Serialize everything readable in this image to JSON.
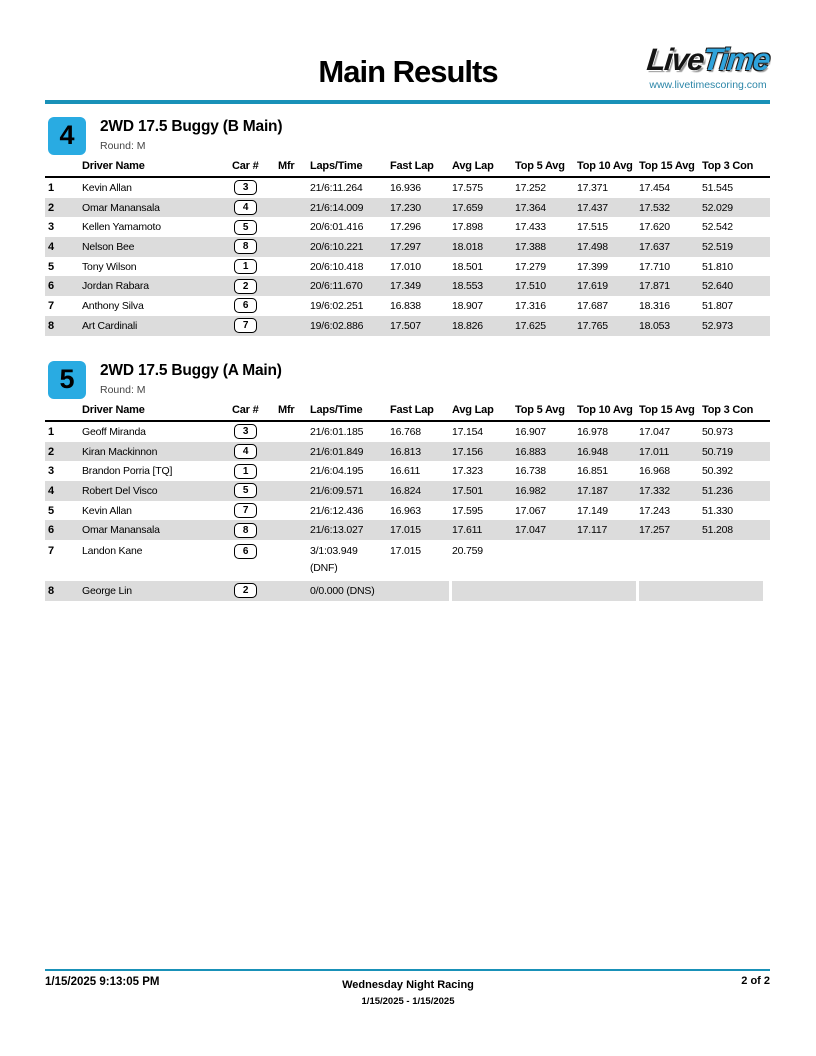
{
  "header": {
    "title": "Main Results",
    "logo_live": "Live",
    "logo_time": "Time",
    "logo_url": "www.livetimescoring.com"
  },
  "columns": [
    "",
    "Driver Name",
    "Car #",
    "Mfr",
    "Laps/Time",
    "Fast Lap",
    "Avg Lap",
    "Top 5 Avg",
    "Top 10 Avg",
    "Top 15 Avg",
    "Top 3 Con"
  ],
  "sections": [
    {
      "number": "4",
      "title": "2WD 17.5 Buggy (B Main)",
      "round": "Round: M",
      "rows": [
        {
          "pos": "1",
          "driver": "Kevin Allan",
          "car": "3",
          "mfr": "",
          "laps": "21/6:11.264",
          "fast": "16.936",
          "avg": "17.575",
          "top5": "17.252",
          "top10": "17.371",
          "top15": "17.454",
          "top3": "51.545"
        },
        {
          "pos": "2",
          "driver": "Omar Manansala",
          "car": "4",
          "mfr": "",
          "laps": "21/6:14.009",
          "fast": "17.230",
          "avg": "17.659",
          "top5": "17.364",
          "top10": "17.437",
          "top15": "17.532",
          "top3": "52.029"
        },
        {
          "pos": "3",
          "driver": "Kellen Yamamoto",
          "car": "5",
          "mfr": "",
          "laps": "20/6:01.416",
          "fast": "17.296",
          "avg": "17.898",
          "top5": "17.433",
          "top10": "17.515",
          "top15": "17.620",
          "top3": "52.542"
        },
        {
          "pos": "4",
          "driver": "Nelson Bee",
          "car": "8",
          "mfr": "",
          "laps": "20/6:10.221",
          "fast": "17.297",
          "avg": "18.018",
          "top5": "17.388",
          "top10": "17.498",
          "top15": "17.637",
          "top3": "52.519"
        },
        {
          "pos": "5",
          "driver": "Tony Wilson",
          "car": "1",
          "mfr": "",
          "laps": "20/6:10.418",
          "fast": "17.010",
          "avg": "18.501",
          "top5": "17.279",
          "top10": "17.399",
          "top15": "17.710",
          "top3": "51.810"
        },
        {
          "pos": "6",
          "driver": "Jordan Rabara",
          "car": "2",
          "mfr": "",
          "laps": "20/6:11.670",
          "fast": "17.349",
          "avg": "18.553",
          "top5": "17.510",
          "top10": "17.619",
          "top15": "17.871",
          "top3": "52.640"
        },
        {
          "pos": "7",
          "driver": "Anthony Silva",
          "car": "6",
          "mfr": "",
          "laps": "19/6:02.251",
          "fast": "16.838",
          "avg": "18.907",
          "top5": "17.316",
          "top10": "17.687",
          "top15": "18.316",
          "top3": "51.807"
        },
        {
          "pos": "8",
          "driver": "Art Cardinali",
          "car": "7",
          "mfr": "",
          "laps": "19/6:02.886",
          "fast": "17.507",
          "avg": "18.826",
          "top5": "17.625",
          "top10": "17.765",
          "top15": "18.053",
          "top3": "52.973"
        }
      ]
    },
    {
      "number": "5",
      "title": "2WD 17.5 Buggy (A Main)",
      "round": "Round: M",
      "rows": [
        {
          "pos": "1",
          "driver": "Geoff Miranda",
          "car": "3",
          "mfr": "",
          "laps": "21/6:01.185",
          "fast": "16.768",
          "avg": "17.154",
          "top5": "16.907",
          "top10": "16.978",
          "top15": "17.047",
          "top3": "50.973"
        },
        {
          "pos": "2",
          "driver": "Kiran Mackinnon",
          "car": "4",
          "mfr": "",
          "laps": "21/6:01.849",
          "fast": "16.813",
          "avg": "17.156",
          "top5": "16.883",
          "top10": "16.948",
          "top15": "17.011",
          "top3": "50.719"
        },
        {
          "pos": "3",
          "driver": "Brandon Porria [TQ]",
          "car": "1",
          "mfr": "",
          "laps": "21/6:04.195",
          "fast": "16.611",
          "avg": "17.323",
          "top5": "16.738",
          "top10": "16.851",
          "top15": "16.968",
          "top3": "50.392"
        },
        {
          "pos": "4",
          "driver": "Robert Del Visco",
          "car": "5",
          "mfr": "",
          "laps": "21/6:09.571",
          "fast": "16.824",
          "avg": "17.501",
          "top5": "16.982",
          "top10": "17.187",
          "top15": "17.332",
          "top3": "51.236"
        },
        {
          "pos": "5",
          "driver": "Kevin Allan",
          "car": "7",
          "mfr": "",
          "laps": "21/6:12.436",
          "fast": "16.963",
          "avg": "17.595",
          "top5": "17.067",
          "top10": "17.149",
          "top15": "17.243",
          "top3": "51.330"
        },
        {
          "pos": "6",
          "driver": "Omar Manansala",
          "car": "8",
          "mfr": "",
          "laps": "21/6:13.027",
          "fast": "17.015",
          "avg": "17.611",
          "top5": "17.047",
          "top10": "17.117",
          "top15": "17.257",
          "top3": "51.208"
        },
        {
          "pos": "7",
          "driver": "Landon Kane",
          "car": "6",
          "mfr": "",
          "laps": "3/1:03.949",
          "laps2": "(DNF)",
          "fast": "17.015",
          "avg": "20.759",
          "top5": "",
          "top10": "",
          "top15": "",
          "top3": ""
        },
        {
          "pos": "8",
          "driver": "George Lin",
          "car": "2",
          "mfr": "",
          "laps": "0/0.000 (DNS)",
          "fast": "",
          "avg": "",
          "top5": "",
          "top10": "",
          "top15": "",
          "top3": ""
        }
      ]
    }
  ],
  "footer": {
    "generated": "1/15/2025 9:13:05 PM",
    "event": "Wednesday Night Racing",
    "date_range": "1/15/2025 - 1/15/2025",
    "page_num": "2 of 2"
  },
  "colors": {
    "accent_teal": "#1991B8",
    "badge_blue": "#29ABE2",
    "row_gray": "#DCDCDC",
    "logo_blue": "#2FA3DC"
  }
}
